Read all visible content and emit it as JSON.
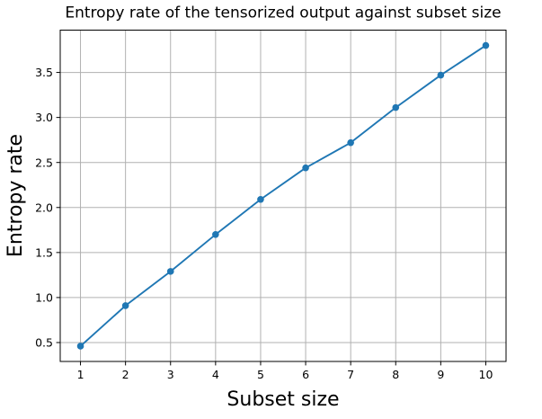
{
  "chart_data": {
    "type": "line",
    "title": "Entropy rate of the tensorized output against subset size",
    "xlabel": "Subset size",
    "ylabel": "Entropy rate",
    "x": [
      1,
      2,
      3,
      4,
      5,
      6,
      7,
      8,
      9,
      10
    ],
    "y": [
      0.46,
      0.91,
      1.29,
      1.7,
      2.09,
      2.44,
      2.72,
      3.11,
      3.47,
      3.8
    ],
    "xlim": [
      0.55,
      10.45
    ],
    "ylim": [
      0.29,
      3.97
    ],
    "xticks": {
      "values": [
        1,
        2,
        3,
        4,
        5,
        6,
        7,
        8,
        9,
        10
      ],
      "labels": [
        "1",
        "2",
        "3",
        "4",
        "5",
        "6",
        "7",
        "8",
        "9",
        "10"
      ]
    },
    "yticks": {
      "values": [
        0.5,
        1.0,
        1.5,
        2.0,
        2.5,
        3.0,
        3.5
      ],
      "labels": [
        "0.5",
        "1.0",
        "1.5",
        "2.0",
        "2.5",
        "3.0",
        "3.5"
      ]
    },
    "grid": true,
    "legend": false,
    "marker": "circle",
    "style": {
      "line_color": "#1f77b4",
      "marker_color": "#1f77b4",
      "grid_color": "#b0b0b0",
      "axis_color": "#000000",
      "background": "#ffffff"
    }
  }
}
